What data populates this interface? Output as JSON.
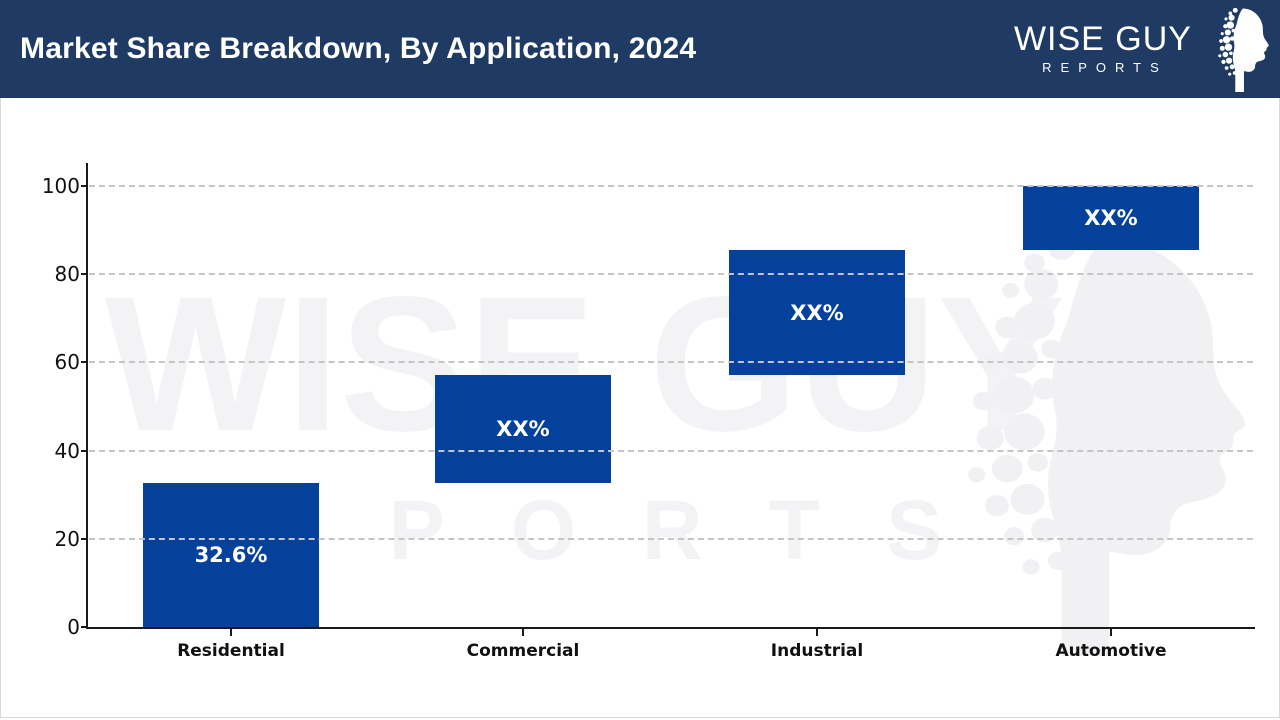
{
  "header": {
    "title": "Market Share Breakdown, By Application, 2024",
    "logo_line1": "WISE GUY",
    "logo_line2": "REPORTS"
  },
  "watermark": {
    "line1": "WISE GUY",
    "line2": "REPORTS"
  },
  "chart_data": {
    "type": "bar",
    "subtype": "waterfall",
    "title": "Market Share Breakdown, By Application, 2024",
    "categories": [
      "Residential",
      "Commercial",
      "Industrial",
      "Automotive"
    ],
    "segments": [
      {
        "category": "Residential",
        "start": 0,
        "end": 32.6,
        "label": "32.6%"
      },
      {
        "category": "Commercial",
        "start": 32.6,
        "end": 57.1,
        "label": "XX%"
      },
      {
        "category": "Industrial",
        "start": 57.1,
        "end": 85.5,
        "label": "XX%"
      },
      {
        "category": "Automotive",
        "start": 85.5,
        "end": 100,
        "label": "XX%"
      }
    ],
    "xlabel": "",
    "ylabel": "",
    "ylim": [
      0,
      100
    ],
    "yticks": [
      0,
      20,
      40,
      60,
      80,
      100
    ],
    "grid": "horizontal-dashed",
    "legend": "none"
  },
  "colors": {
    "header_bg": "#1f3a63",
    "bar": "#04419c",
    "grid": "#c5c5c5",
    "axis": "#1a1a1a",
    "watermark": "#f3f3f6",
    "title_text": "#ffffff",
    "bar_label_text": "#ffffff"
  }
}
